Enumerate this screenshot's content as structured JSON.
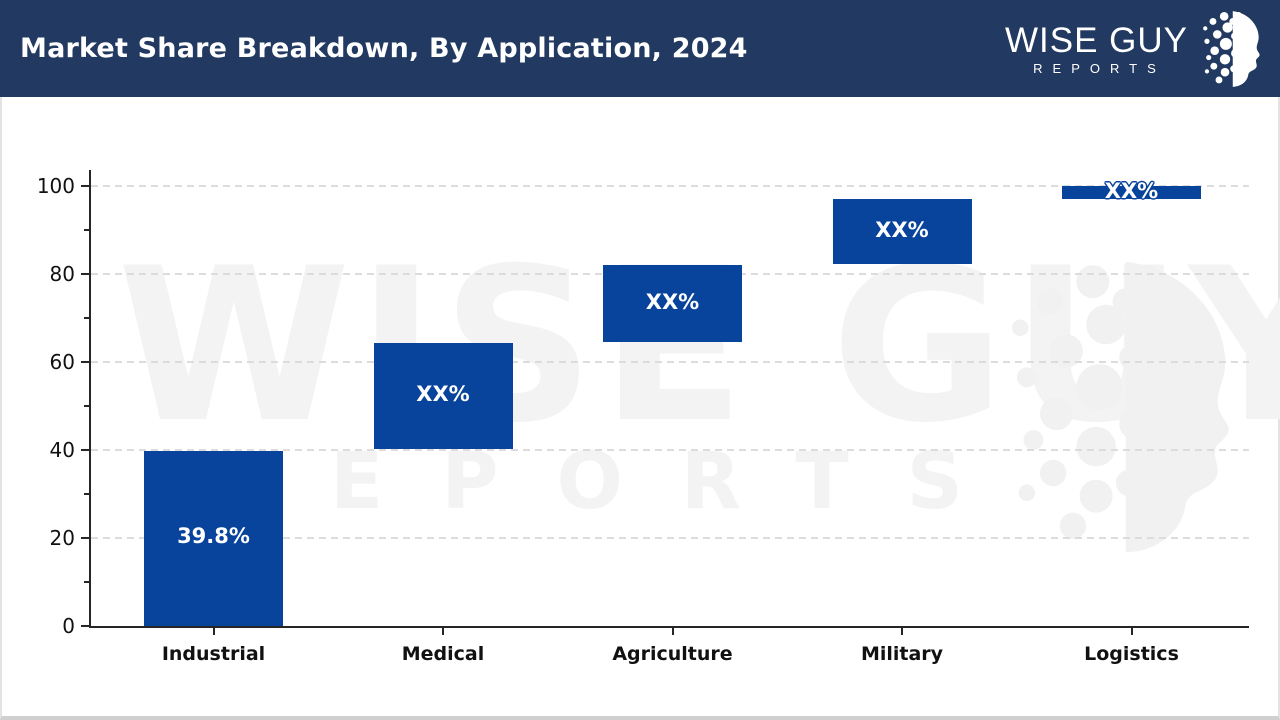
{
  "header": {
    "title": "Market Share Breakdown, By Application, 2024",
    "bg_color": "#223961",
    "logo": {
      "line1": "WISE GUY",
      "line2": "REPORTS",
      "face_icon": "dotted-head-profile"
    }
  },
  "watermark": {
    "line1": "WISE GUY",
    "line2": "REPORTS",
    "face_icon": "dotted-head-profile",
    "color": "#f3f3f3"
  },
  "chart_data": {
    "type": "bar",
    "subtype": "waterfall",
    "title": "Market Share Breakdown, By Application, 2024",
    "xlabel": "",
    "ylabel": "",
    "ylim": [
      0,
      100
    ],
    "yticks": [
      0,
      20,
      40,
      60,
      80,
      100
    ],
    "minor_yticks": [
      10,
      30,
      50,
      70,
      90
    ],
    "grid": "dashed-horizontal",
    "legend": "none",
    "bar_color": "#08439c",
    "label_color": "#ffffff",
    "categories": [
      "Industrial",
      "Medical",
      "Agriculture",
      "Military",
      "Logistics"
    ],
    "segments": [
      {
        "category": "Industrial",
        "start": 0,
        "end": 39.8,
        "value": 39.8,
        "label": "39.8%"
      },
      {
        "category": "Medical",
        "start": 40.2,
        "end": 64.3,
        "value": 24.1,
        "label": "XX%"
      },
      {
        "category": "Agriculture",
        "start": 64.5,
        "end": 82.0,
        "value": 17.5,
        "label": "XX%"
      },
      {
        "category": "Military",
        "start": 82.3,
        "end": 97.0,
        "value": 14.7,
        "label": "XX%"
      },
      {
        "category": "Logistics",
        "start": 97.0,
        "end": 100.0,
        "value": 3.0,
        "label": "XX%"
      }
    ]
  }
}
